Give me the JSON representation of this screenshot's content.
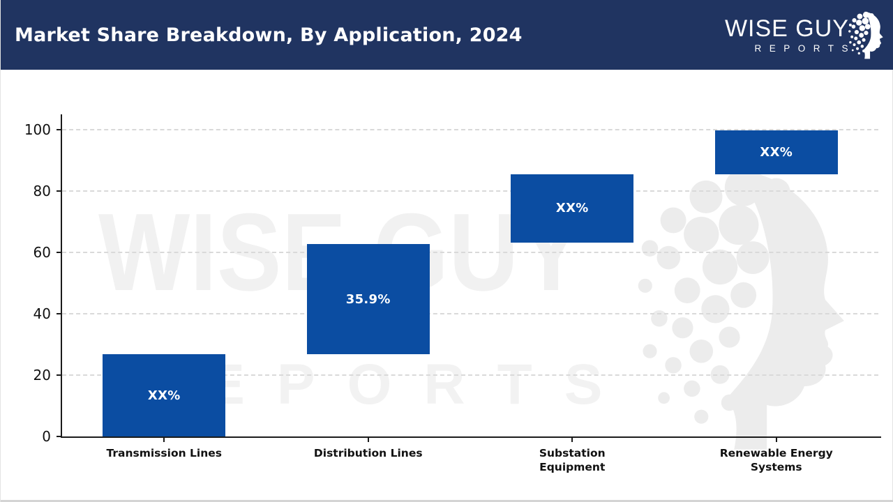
{
  "header": {
    "title": "Market Share Breakdown, By Application, 2024",
    "bg_color": "#203461",
    "logo": {
      "line1": "WISE GUY",
      "line2": "REPORTS"
    }
  },
  "watermark": {
    "line1": "WISE GUY",
    "line2": "REPORTS"
  },
  "chart_data": {
    "type": "bar",
    "subtype": "floating-segment-waterfall",
    "title": "Market Share Breakdown, By Application, 2024",
    "categories": [
      "Transmission Lines",
      "Distribution Lines",
      "Substation\nEquipment",
      "Renewable Energy\nSystems"
    ],
    "segments": [
      {
        "category": "Transmission Lines",
        "label": "XX%",
        "start": 0,
        "end": 26.8
      },
      {
        "category": "Distribution Lines",
        "label": "35.9%",
        "start": 26.8,
        "end": 62.7
      },
      {
        "category": "Substation Equipment",
        "label": "XX%",
        "start": 63.2,
        "end": 85.5
      },
      {
        "category": "Renewable Energy Systems",
        "label": "XX%",
        "start": 85.5,
        "end": 99.8
      }
    ],
    "yticks": [
      0,
      20,
      40,
      60,
      80,
      100
    ],
    "ylim": [
      0,
      105
    ],
    "xlabel": "",
    "ylabel": "",
    "grid": "horizontal-dashed",
    "legend": "none",
    "bar_color": "#0B4DA2",
    "bar_label_color": "#ffffff",
    "axis_color": "#1a1a1a",
    "gridline_color": "#d9d9d9"
  }
}
